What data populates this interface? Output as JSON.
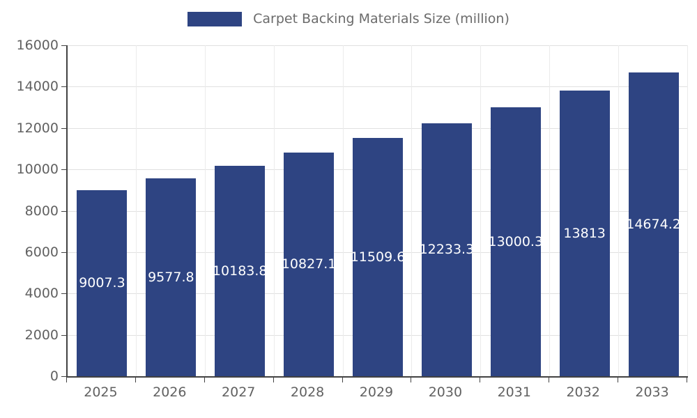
{
  "chart_data": {
    "type": "bar",
    "title": "Carpet Backing Materials Size (million)",
    "categories": [
      "2025",
      "2026",
      "2027",
      "2028",
      "2029",
      "2030",
      "2031",
      "2032",
      "2033"
    ],
    "values": [
      9007.3,
      9577.8,
      10183.8,
      10827.1,
      11509.6,
      12233.3,
      13000.3,
      13813,
      14674.2
    ],
    "value_labels": [
      "9007.3",
      "9577.8",
      "10183.8",
      "10827.1",
      "11509.6",
      "12233.3",
      "13000.3",
      "13813",
      "14674.2"
    ],
    "xlabel": "",
    "ylabel": "",
    "ylim": [
      0,
      16000
    ],
    "yticks": [
      0,
      2000,
      4000,
      6000,
      8000,
      10000,
      12000,
      14000,
      16000
    ],
    "grid": true,
    "legend_position": "top",
    "bar_color": "#2e4482",
    "label_color": "#ffffff",
    "axis_color": "#424242",
    "tick_text_color": "#616161"
  },
  "legend": {
    "label": "Carpet Backing Materials Size (million)"
  }
}
